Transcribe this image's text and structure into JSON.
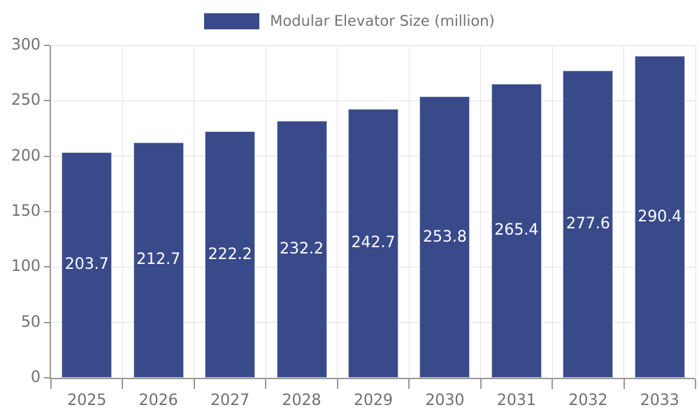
{
  "legend": {
    "label": "Modular Elevator Size (million)"
  },
  "chart_data": {
    "type": "bar",
    "title": "",
    "categories": [
      "2025",
      "2026",
      "2027",
      "2028",
      "2029",
      "2030",
      "2031",
      "2032",
      "2033"
    ],
    "series": [
      {
        "name": "Modular Elevator Size (million)",
        "values": [
          203.7,
          212.7,
          222.2,
          232.2,
          242.7,
          253.8,
          265.4,
          277.6,
          290.4
        ]
      }
    ],
    "bar_labels": [
      "203.7",
      "212.7",
      "222.2",
      "232.2",
      "242.7",
      "253.8",
      "265.4",
      "277.6",
      "290.4"
    ],
    "xlabel": "",
    "ylabel": "",
    "ylim": [
      0,
      300
    ],
    "yticks": [
      0,
      50,
      100,
      150,
      200,
      250,
      300
    ],
    "grid": true,
    "legend_position": "top",
    "colors": {
      "bar": "#394A8B",
      "bar_border": "#C3C7D7",
      "bar_label_text": "#FFFFFF",
      "grid_line": "#E2E2E2",
      "axis_line": "#9A9A9A",
      "tick_text": "#707070",
      "legend_text": "#757575"
    }
  }
}
